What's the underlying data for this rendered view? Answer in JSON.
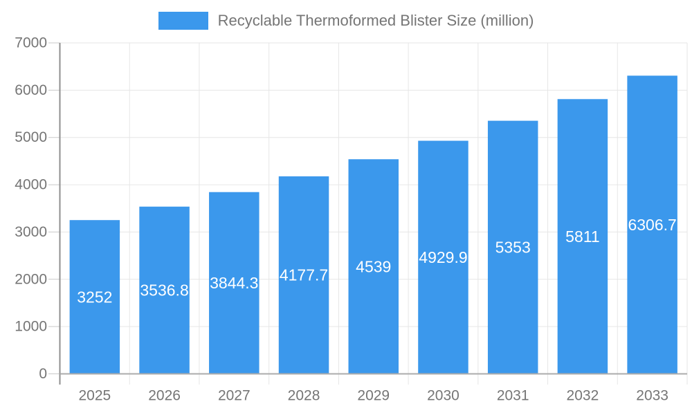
{
  "chart_data": {
    "type": "bar",
    "title": "Recyclable Thermoformed Blister Size (million)",
    "series_name": "Recyclable Thermoformed Blister Size (million)",
    "categories": [
      "2025",
      "2026",
      "2027",
      "2028",
      "2029",
      "2030",
      "2031",
      "2032",
      "2033"
    ],
    "values": [
      3252,
      3536.8,
      3844.3,
      4177.7,
      4539,
      4929.9,
      5353,
      5811,
      6306.7
    ],
    "xlabel": "",
    "ylabel": "",
    "ylim": [
      0,
      7000
    ],
    "ytick_step": 1000,
    "yticks": [
      0,
      1000,
      2000,
      3000,
      4000,
      5000,
      6000,
      7000
    ],
    "grid": true,
    "legend_position": "top",
    "value_label_position": "inside-center",
    "colors": {
      "accent": "#3b98ec",
      "axis_label": "#757575",
      "value_label": "#ffffff",
      "grid": "#e6e6e6",
      "tick": "#c9c9c9",
      "y_axis": "#8f8f8f",
      "x_axis": "#ababab"
    }
  }
}
